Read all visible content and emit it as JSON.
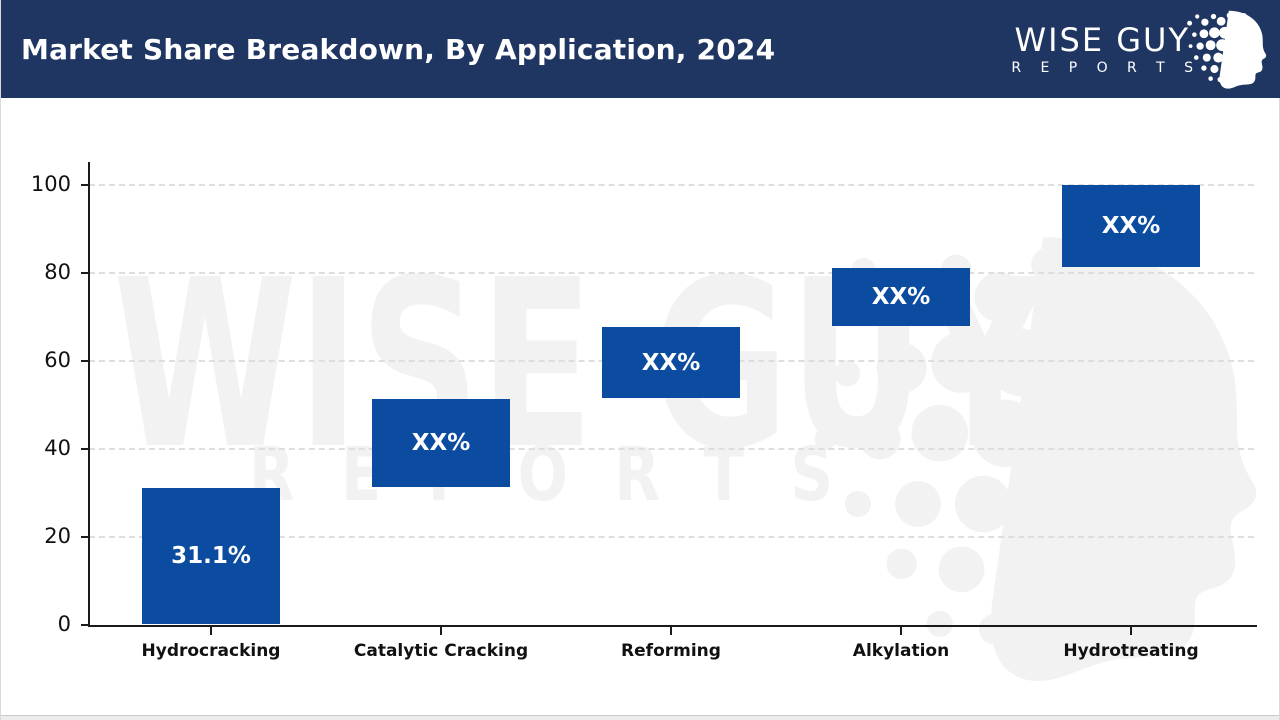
{
  "header": {
    "title": "Market Share Breakdown, By Application, 2024",
    "logo": {
      "line1": "WISE GUY",
      "line2": "REPORTS"
    }
  },
  "watermark": {
    "line1": "WISE GUY",
    "line2": "REPORTS"
  },
  "chart_data": {
    "type": "bar",
    "subtype": "waterfall",
    "title": "Market Share Breakdown, By Application, 2024",
    "categories": [
      "Hydrocracking",
      "Catalytic Cracking",
      "Reforming",
      "Alkylation",
      "Hydrotreating"
    ],
    "segments": [
      {
        "category": "Hydrocracking",
        "start": 0,
        "end": 31.1,
        "label": "31.1%"
      },
      {
        "category": "Catalytic Cracking",
        "start": 31.1,
        "end": 51.2,
        "label": "XX%"
      },
      {
        "category": "Reforming",
        "start": 51.2,
        "end": 67.6,
        "label": "XX%"
      },
      {
        "category": "Alkylation",
        "start": 67.6,
        "end": 81.0,
        "label": "XX%"
      },
      {
        "category": "Hydrotreating",
        "start": 81.0,
        "end": 100,
        "label": "XX%"
      }
    ],
    "y_ticks": [
      0,
      20,
      40,
      60,
      80,
      100
    ],
    "ylim": [
      0,
      105
    ],
    "xlabel": "",
    "ylabel": "",
    "grid": "dashed-horizontal",
    "legend": "none",
    "bar_color": "#0B4BA0",
    "bar_label_color": "#FFFFFF"
  },
  "colors": {
    "header_bg": "#203662",
    "header_text": "#FFFFFF",
    "axis": "#1A1A1A",
    "gridline": "#DEDEDE",
    "watermark": "#F2F2F2"
  }
}
